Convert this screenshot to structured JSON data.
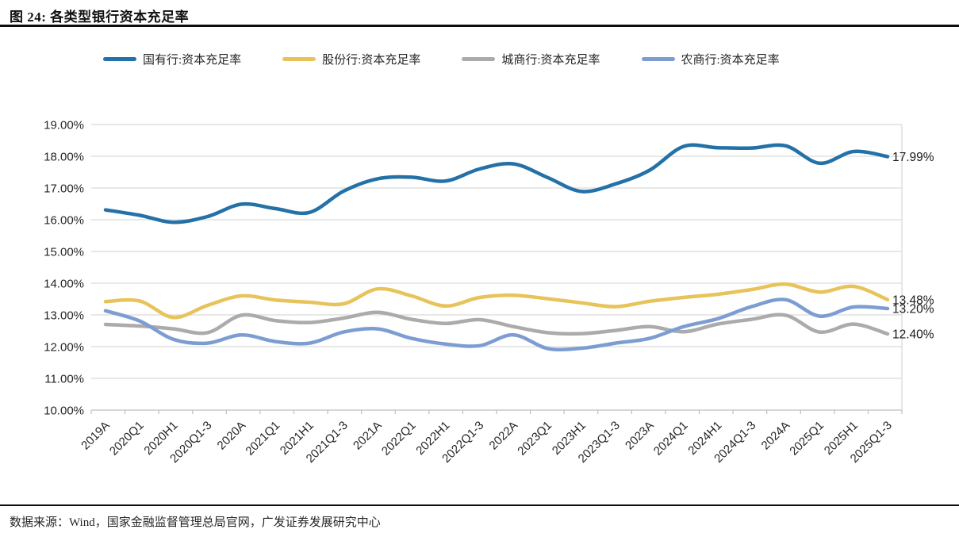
{
  "figure": {
    "title": "图 24:  各类型银行资本充足率",
    "source": "数据来源：Wind，国家金融监督管理总局官网，广发证券发展研究中心"
  },
  "chart_data": {
    "type": "line",
    "title": "各类型银行资本充足率",
    "categories": [
      "2019A",
      "2020Q1",
      "2020H1",
      "2020Q1-3",
      "2020A",
      "2021Q1",
      "2021H1",
      "2021Q1-3",
      "2021A",
      "2022Q1",
      "2022H1",
      "2022Q1-3",
      "2022A",
      "2023Q1",
      "2023H1",
      "2023Q1-3",
      "2023A",
      "2024Q1",
      "2024H1",
      "2024Q1-3",
      "2024A",
      "2025Q1",
      "2025H1",
      "2025Q1-3"
    ],
    "series": [
      {
        "name": "国有行:资本充足率",
        "color": "#2471A8",
        "end_label": "17.99%",
        "values": [
          16.31,
          16.14,
          15.92,
          16.1,
          16.49,
          16.35,
          16.23,
          16.9,
          17.29,
          17.34,
          17.22,
          17.6,
          17.76,
          17.33,
          16.89,
          17.13,
          17.56,
          18.31,
          18.27,
          18.26,
          18.33,
          17.78,
          18.15,
          17.99
        ]
      },
      {
        "name": "股份行:资本充足率",
        "color": "#E7C35A",
        "end_label": "13.48%",
        "values": [
          13.42,
          13.44,
          12.92,
          13.3,
          13.6,
          13.47,
          13.4,
          13.35,
          13.82,
          13.6,
          13.28,
          13.55,
          13.62,
          13.51,
          13.38,
          13.26,
          13.43,
          13.55,
          13.65,
          13.8,
          13.97,
          13.72,
          13.9,
          13.48
        ]
      },
      {
        "name": "城商行:资本充足率",
        "color": "#ABABAB",
        "end_label": "12.40%",
        "values": [
          12.7,
          12.65,
          12.56,
          12.44,
          12.99,
          12.82,
          12.76,
          12.9,
          13.08,
          12.86,
          12.73,
          12.85,
          12.63,
          12.44,
          12.41,
          12.51,
          12.63,
          12.47,
          12.71,
          12.86,
          12.99,
          12.46,
          12.71,
          12.4
        ]
      },
      {
        "name": "农商行:资本充足率",
        "color": "#7D9DD2",
        "end_label": "13.20%",
        "values": [
          13.13,
          12.81,
          12.23,
          12.11,
          12.37,
          12.16,
          12.11,
          12.46,
          12.56,
          12.26,
          12.08,
          12.03,
          12.37,
          11.94,
          11.95,
          12.11,
          12.26,
          12.63,
          12.88,
          13.26,
          13.48,
          12.96,
          13.25,
          13.2
        ]
      }
    ],
    "ylim": [
      10,
      19
    ],
    "ytick_step": 1,
    "ytick_format": "0.00%",
    "grid": "horizontal",
    "legend_position": "top",
    "line_width": 4.5,
    "grid_color": "#D9D9D9",
    "axis_color": "#BFBFBF",
    "label_color": "#262626"
  }
}
